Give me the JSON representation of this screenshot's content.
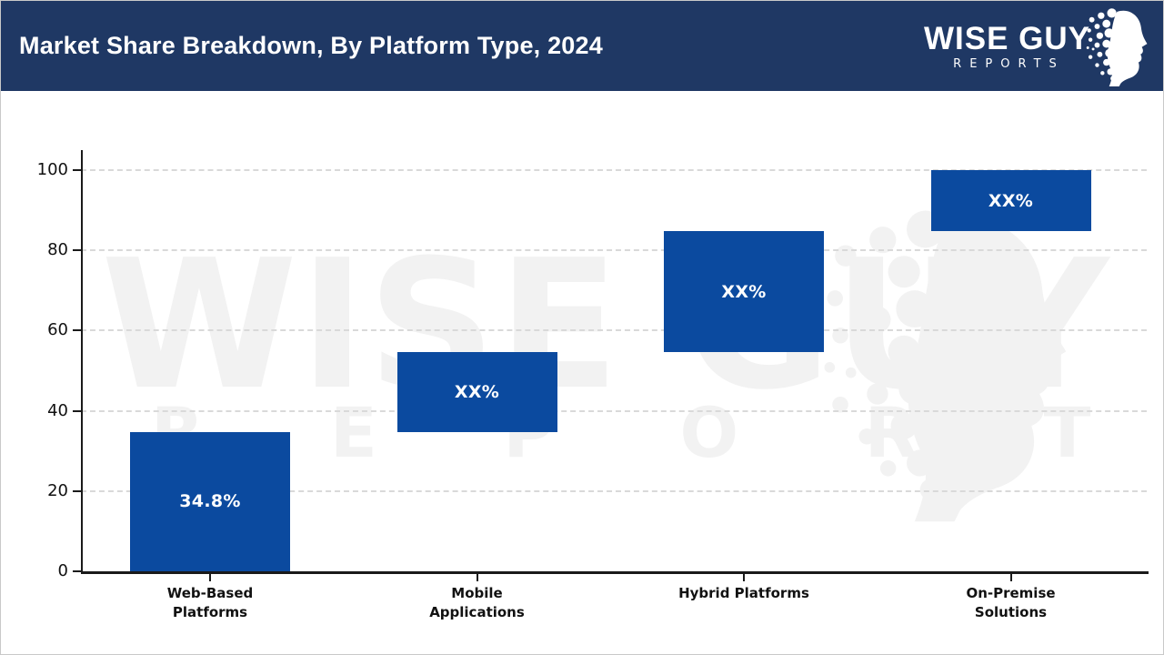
{
  "header": {
    "title": "Market Share Breakdown, By Platform Type, 2024",
    "logo": {
      "brand": "WISE GUY",
      "sub": "REPORTS"
    }
  },
  "watermark": {
    "brand": "WISE GUY",
    "sub": "R E P O R T S"
  },
  "chart_data": {
    "type": "bar",
    "subtype": "waterfall",
    "title": "Market Share Breakdown, By Platform Type, 2024",
    "categories": [
      "Web-Based Platforms",
      "Mobile Applications",
      "Hybrid Platforms",
      "On-Premise Solutions"
    ],
    "category_label_lines": [
      [
        "Web-Based",
        "Platforms"
      ],
      [
        "Mobile",
        "Applications"
      ],
      [
        "Hybrid Platforms"
      ],
      [
        "On-Premise",
        "Solutions"
      ]
    ],
    "segments": [
      {
        "category": "Web-Based Platforms",
        "start": 0,
        "end": 34.8,
        "label": "34.8%"
      },
      {
        "category": "Mobile Applications",
        "start": 34.8,
        "end": 54.6,
        "label": "XX%"
      },
      {
        "category": "Hybrid Platforms",
        "start": 54.6,
        "end": 84.8,
        "label": "XX%"
      },
      {
        "category": "On-Premise Solutions",
        "start": 84.8,
        "end": 100,
        "label": "XX%"
      }
    ],
    "yticks": [
      0,
      20,
      40,
      60,
      80,
      100
    ],
    "ylim": [
      0,
      105
    ],
    "xlabel": "",
    "ylabel": "",
    "legend": "none",
    "grid": {
      "horizontal": true,
      "style": "dashed"
    }
  },
  "colors": {
    "header_bg": "#1f3864",
    "bar_fill": "#0b4a9f",
    "bar_label_text": "#ffffff",
    "grid_line": "#d9d9d9",
    "axis_line": "#1a1a1a",
    "tick_text": "#111111",
    "watermark": "#f2f2f2",
    "page_border": "#c9c9c9"
  }
}
